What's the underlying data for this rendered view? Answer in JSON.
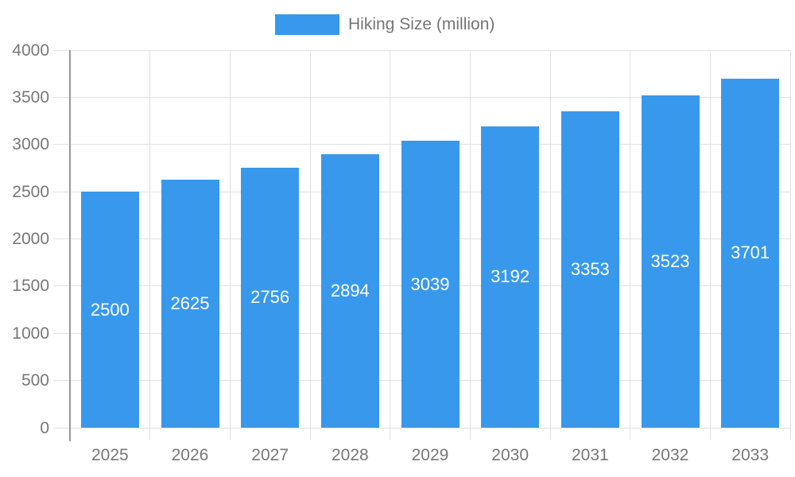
{
  "chart_data": {
    "type": "bar",
    "title": "Hiking Size (million)",
    "categories": [
      "2025",
      "2026",
      "2027",
      "2028",
      "2029",
      "2030",
      "2031",
      "2032",
      "2033"
    ],
    "values": [
      2500,
      2625,
      2756,
      2894,
      3039,
      3192,
      3353,
      3523,
      3701
    ],
    "xlabel": "",
    "ylabel": "",
    "ylim": [
      0,
      4000
    ],
    "ytick_step": 500,
    "ytick_labels": [
      "0",
      "500",
      "1000",
      "1500",
      "2000",
      "2500",
      "3000",
      "3500",
      "4000"
    ],
    "grid": true,
    "value_labels": "inside-center",
    "legend": {
      "label": "Hiking Size (million)",
      "position": "top-center"
    },
    "colors": {
      "bar": "#3899EC",
      "grid_line": "#E0E0E0",
      "axis_line": "#999999",
      "tick_label": "#777777",
      "value_label": "#FFFFFF",
      "legend_label": "#757575",
      "background": "#FFFFFF"
    }
  }
}
